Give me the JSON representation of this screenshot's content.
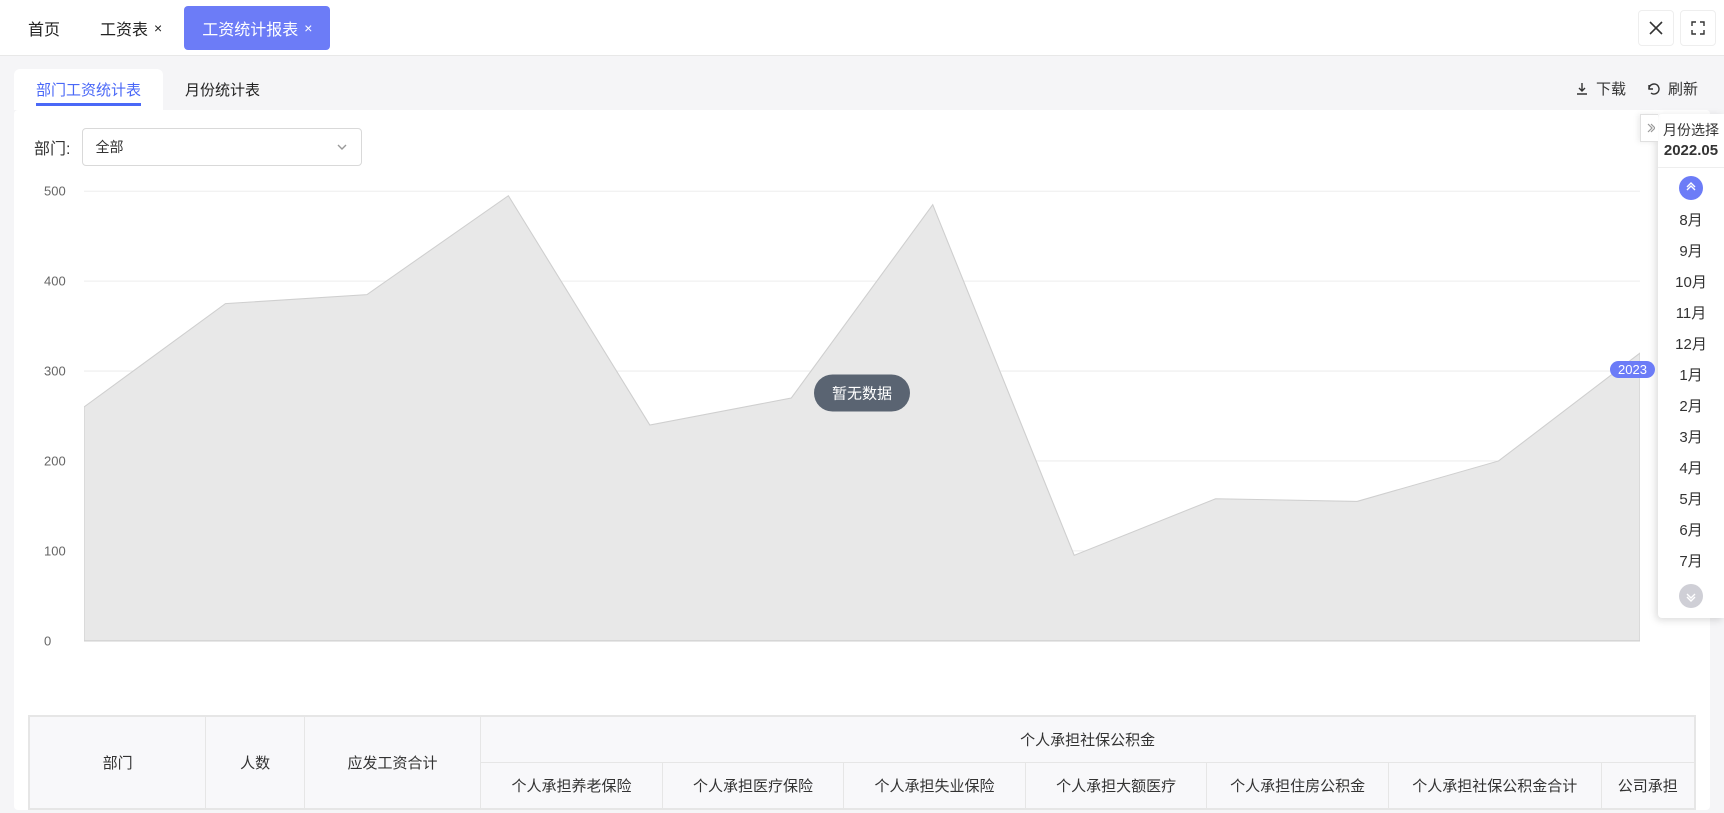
{
  "topTabs": [
    {
      "label": "首页",
      "closable": false,
      "active": false
    },
    {
      "label": "工资表",
      "closable": true,
      "active": false
    },
    {
      "label": "工资统计报表",
      "closable": true,
      "active": true
    }
  ],
  "topRight": {
    "closeName": "close-icon",
    "fullscreenName": "fullscreen-icon"
  },
  "subTabs": [
    {
      "label": "部门工资统计表",
      "active": true
    },
    {
      "label": "月份统计表",
      "active": false
    }
  ],
  "toolbar": {
    "download": "下载",
    "refresh": "刷新"
  },
  "filter": {
    "label": "部门:",
    "value": "全部"
  },
  "chart": {
    "type": "area",
    "ylim": [
      0,
      500
    ],
    "ytick_step": 100,
    "yticks": [
      0,
      100,
      200,
      300,
      400,
      500
    ],
    "values": [
      260,
      375,
      385,
      495,
      240,
      270,
      485,
      95,
      158,
      155,
      200,
      320
    ],
    "fill_color": "#e8e8e8",
    "line_color": "#cfcfcf",
    "grid_color": "#eeeeee",
    "axis_color": "#bfbfbf",
    "background_color": "#ffffff",
    "no_data_text": "暂无数据",
    "bubble_bg": "#5a6472",
    "label_fontsize": 13,
    "label_color": "#666666"
  },
  "table": {
    "group_header": "个人承担社保公积金",
    "cols_fixed": [
      "部门",
      "人数",
      "应发工资合计"
    ],
    "cols_sub": [
      "个人承担养老保险",
      "个人承担医疗保险",
      "个人承担失业保险",
      "个人承担大额医疗",
      "个人承担住房公积金",
      "个人承担社保公积金合计",
      "公司承担"
    ]
  },
  "monthPanel": {
    "title": "月份选择",
    "selected": "2022.05",
    "yearPillText": "2023",
    "yearPillBeforeIndex": 5,
    "months": [
      "8月",
      "9月",
      "10月",
      "11月",
      "12月",
      "1月",
      "2月",
      "3月",
      "4月",
      "5月",
      "6月",
      "7月"
    ]
  },
  "colors": {
    "primary": "#6c7cf7",
    "activeTabBg": "#6c7cf7",
    "subActive": "#4a68f7"
  }
}
